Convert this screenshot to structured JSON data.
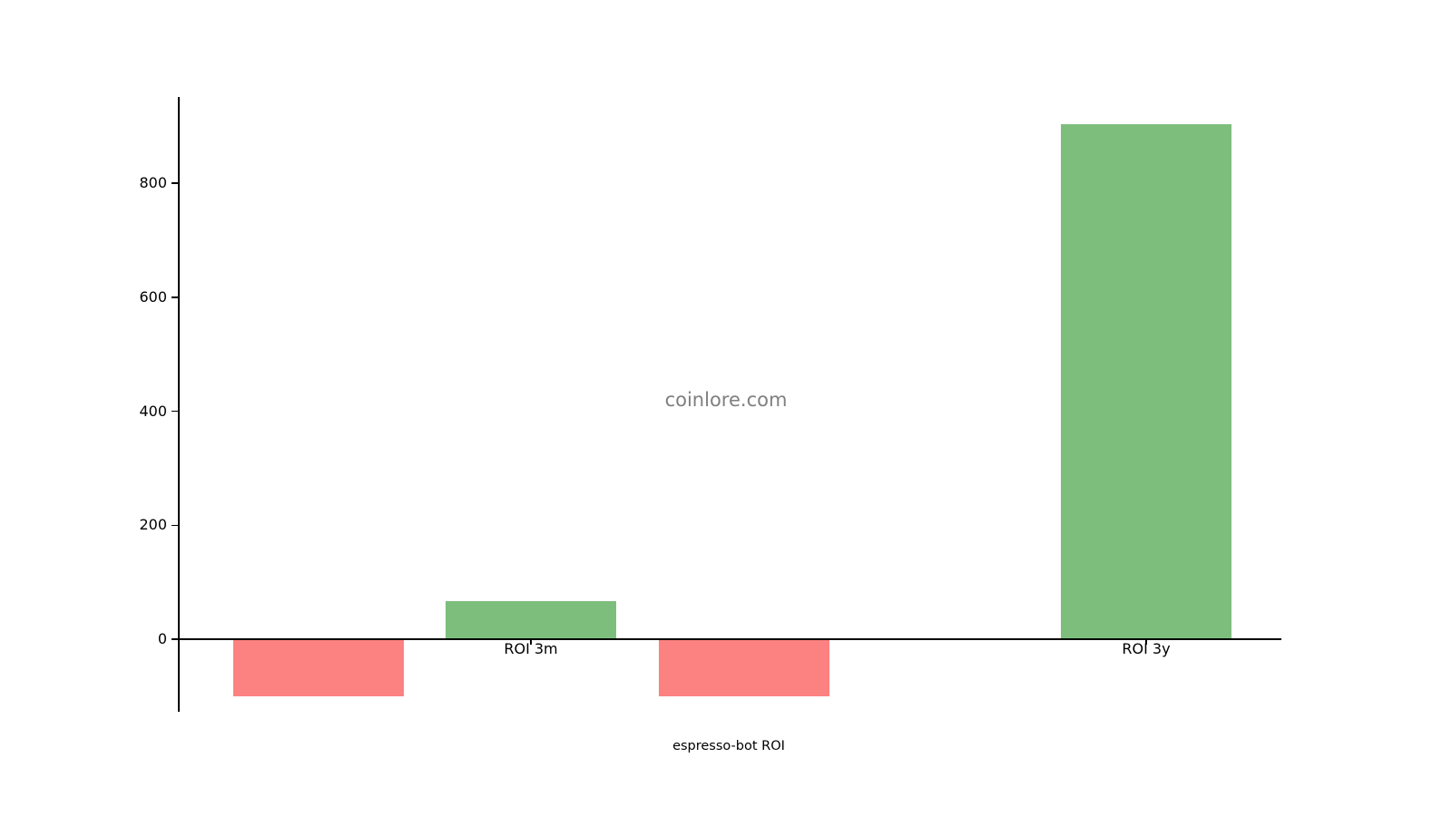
{
  "chart_data": {
    "type": "bar",
    "title": "espresso-bot ROI",
    "watermark": "coinlore.com",
    "categories": [
      "",
      "ROI 3m",
      "",
      "ROI 3y"
    ],
    "values": [
      -100,
      67,
      -100,
      903
    ],
    "bar_names": [
      "bar-negative-1",
      "bar-roi-3m",
      "bar-negative-2",
      "bar-roi-3y"
    ],
    "bar_colors": [
      "#fc8181",
      "#7dbe7d",
      "#fc8181",
      "#7dbe7d"
    ],
    "y_ticks": [
      0,
      200,
      400,
      600,
      800
    ],
    "ylim": [
      -127,
      951
    ],
    "xlabel": "",
    "ylabel": "",
    "grid": false,
    "legend": false
  },
  "colors": {
    "positive": "#7dbe7d",
    "negative": "#fc8181",
    "axis": "#000000",
    "tick_text": "#000000",
    "watermark_text": "#7f7f7f"
  }
}
